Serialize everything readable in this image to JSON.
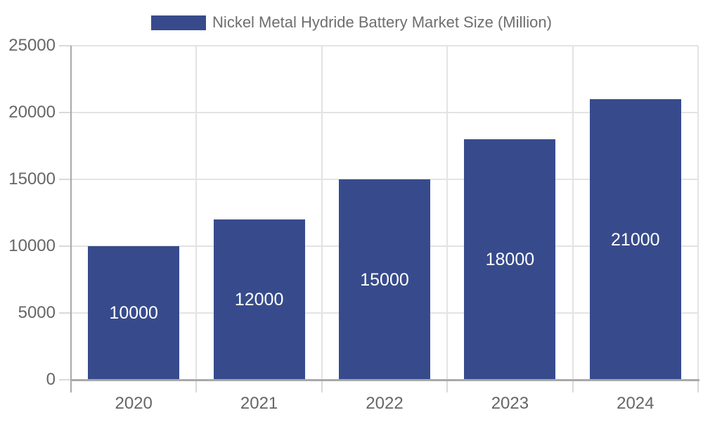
{
  "chart_data": {
    "type": "bar",
    "title": "Nickel Metal Hydride Battery Market Size (Million)",
    "categories": [
      "2020",
      "2021",
      "2022",
      "2023",
      "2024"
    ],
    "series": [
      {
        "name": "Nickel Metal Hydride Battery Market Size (Million)",
        "values": [
          10000,
          12000,
          15000,
          18000,
          21000
        ]
      }
    ],
    "bar_value_labels": [
      "10000",
      "12000",
      "15000",
      "18000",
      "21000"
    ],
    "xlabel": "",
    "ylabel": "",
    "ylim": [
      0,
      25000
    ],
    "ytick_step": 5000,
    "ytick_labels": [
      "0",
      "5000",
      "10000",
      "15000",
      "20000",
      "25000"
    ],
    "grid": true,
    "legend_position": "top"
  },
  "legend": {
    "label": "Nickel Metal Hydride Battery Market Size (Million)"
  },
  "colors": {
    "bar": "#374B8C",
    "bar_label": "#FFFFFF",
    "axis_text": "#666666",
    "title_text": "#6E6E6E",
    "gridline": "#E3E3E3",
    "axis_line": "#A9A9A9",
    "tick": "#D9D9D9",
    "background": "#FFFFFF"
  }
}
